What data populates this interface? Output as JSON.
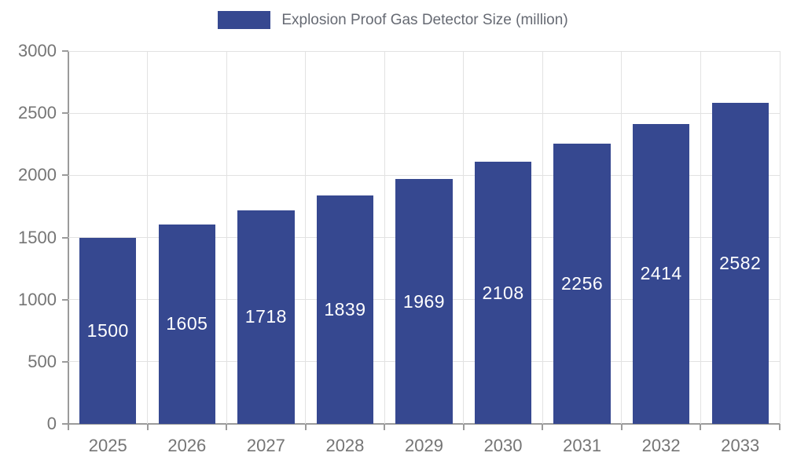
{
  "legend": {
    "label": "Explosion Proof Gas Detector Size (million)"
  },
  "chart_data": {
    "type": "bar",
    "title": "Explosion Proof Gas Detector Size (million)",
    "categories": [
      "2025",
      "2026",
      "2027",
      "2028",
      "2029",
      "2030",
      "2031",
      "2032",
      "2033"
    ],
    "values": [
      1500,
      1605,
      1718,
      1839,
      1969,
      2108,
      2256,
      2414,
      2582
    ],
    "xlabel": "",
    "ylabel": "",
    "ylim": [
      0,
      3000
    ],
    "yticks": [
      0,
      500,
      1000,
      1500,
      2000,
      2500,
      3000
    ],
    "grid": true,
    "legend_position": "top-center",
    "bar_label_position": "inside-center",
    "colors": {
      "bar": "#364890",
      "bar_label": "#ffffff",
      "axis_label": "#757575",
      "legend_text": "#666a73",
      "grid_line": "#e2e2e2",
      "axis_line": "#9b9b9b",
      "background": "#ffffff"
    }
  }
}
